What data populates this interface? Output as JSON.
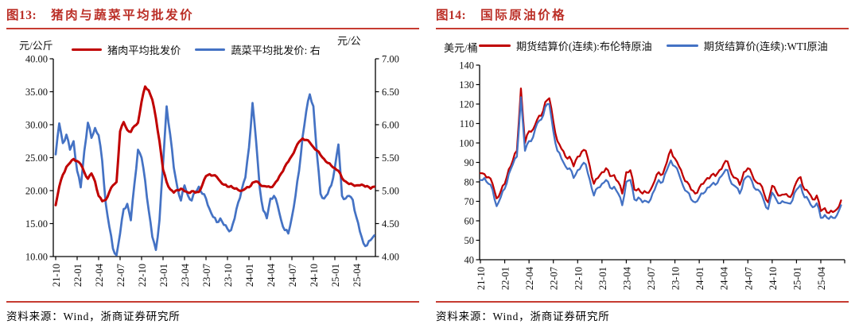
{
  "page": {
    "background": "#ffffff"
  },
  "styles": {
    "title_color": "#bb2f27",
    "rule_color": "#c63b31",
    "axis_color": "#000000",
    "pork_brent_red": "#c00000",
    "veg_wti_blue": "#4472c4"
  },
  "chart_data": [
    {
      "type": "line",
      "figure_label": "图13:",
      "title": "猪肉与蔬菜平均批发价",
      "source": "资料来源：Wind，浙商证券研究所",
      "x_axis": {
        "tick_labels": [
          "21-10",
          "22-01",
          "22-04",
          "22-07",
          "22-10",
          "23-01",
          "23-04",
          "23-07",
          "23-10",
          "24-01",
          "24-04",
          "24-07",
          "24-10",
          "25-01",
          "25-04"
        ],
        "months_per_tick": 3,
        "points_per_month": 2,
        "x_start": "2021-10",
        "x_interval": "semi-monthly"
      },
      "left_axis": {
        "unit": "元/公斤",
        "min": 10,
        "max": 40,
        "ticks": [
          {
            "v": 40,
            "label": "40.00"
          },
          {
            "v": 35,
            "label": "35.00"
          },
          {
            "v": 30,
            "label": "30.00"
          },
          {
            "v": 25,
            "label": "25.00"
          },
          {
            "v": 20,
            "label": "20.00"
          },
          {
            "v": 15,
            "label": "15.00"
          },
          {
            "v": 10,
            "label": "10.00"
          }
        ]
      },
      "right_axis": {
        "unit": "元/公",
        "min": 4,
        "max": 7,
        "ticks": [
          {
            "v": 7,
            "label": "7.00"
          },
          {
            "v": 6.5,
            "label": "6.50"
          },
          {
            "v": 6,
            "label": "6.00"
          },
          {
            "v": 5.5,
            "label": "5.50"
          },
          {
            "v": 5,
            "label": "5.00"
          },
          {
            "v": 4.5,
            "label": "4.50"
          },
          {
            "v": 4,
            "label": "4.00"
          }
        ]
      },
      "series": [
        {
          "name": "猪肉平均批发价",
          "axis": "left",
          "color": "#c00000",
          "values": [
            17.8,
            20.6,
            22.4,
            23.6,
            24.2,
            24.8,
            24.5,
            24.0,
            22.8,
            21.8,
            22.6,
            21.4,
            19.2,
            18.4,
            18.6,
            19.8,
            20.8,
            21.3,
            29.0,
            30.4,
            29.2,
            28.9,
            29.8,
            30.3,
            33.5,
            35.8,
            35.2,
            33.8,
            31.0,
            27.5,
            23.2,
            21.3,
            20.2,
            19.7,
            20.1,
            20.3,
            19.9,
            19.7,
            19.9,
            19.7,
            19.8,
            20.9,
            22.2,
            22.5,
            22.3,
            22.1,
            21.4,
            20.9,
            20.6,
            20.7,
            20.3,
            20.1,
            20.0,
            20.3,
            20.5,
            21.2,
            21.4,
            21.0,
            20.7,
            20.6,
            20.5,
            20.9,
            21.6,
            22.6,
            23.6,
            24.4,
            25.3,
            26.4,
            27.4,
            27.9,
            27.7,
            27.3,
            26.6,
            26.1,
            25.4,
            24.8,
            24.2,
            23.8,
            23.4,
            23.0,
            21.9,
            21.4,
            21.0,
            20.9,
            20.8,
            20.8,
            20.8,
            20.7,
            20.3,
            20.6
          ]
        },
        {
          "name": "蔬菜平均批发价: 右",
          "axis": "right",
          "color": "#4472c4",
          "values": [
            5.55,
            6.02,
            5.72,
            5.85,
            5.62,
            5.75,
            5.3,
            5.05,
            5.6,
            6.03,
            5.8,
            5.95,
            5.84,
            5.45,
            4.8,
            4.45,
            4.12,
            4.02,
            4.35,
            4.72,
            4.8,
            4.55,
            5.1,
            5.62,
            5.5,
            5.15,
            4.7,
            4.3,
            4.1,
            4.55,
            5.4,
            6.28,
            5.85,
            5.35,
            5.05,
            4.85,
            5.08,
            4.92,
            4.85,
            4.98,
            5.06,
            4.95,
            4.88,
            4.72,
            4.6,
            4.52,
            4.58,
            4.48,
            4.42,
            4.4,
            4.58,
            4.82,
            5.02,
            5.2,
            5.65,
            6.33,
            5.75,
            5.05,
            4.7,
            4.58,
            4.88,
            4.92,
            4.78,
            4.55,
            4.4,
            4.35,
            4.6,
            4.92,
            5.3,
            5.82,
            6.2,
            6.46,
            6.28,
            5.55,
            4.95,
            4.88,
            4.95,
            5.08,
            5.35,
            5.7,
            4.92,
            4.88,
            4.92,
            4.86,
            4.6,
            4.38,
            4.2,
            4.17,
            4.25,
            4.32
          ]
        }
      ]
    },
    {
      "type": "line",
      "figure_label": "图14:",
      "title": "国际原油价格",
      "source": "资料来源：Wind，浙商证券研究所",
      "x_axis": {
        "tick_labels": [
          "21-10",
          "22-01",
          "22-04",
          "22-07",
          "22-10",
          "23-01",
          "23-04",
          "23-07",
          "23-10",
          "24-01",
          "24-04",
          "24-07",
          "24-10",
          "25-01",
          "25-04"
        ],
        "months_per_tick": 3,
        "points_per_month": 2,
        "x_start": "2021-10",
        "x_interval": "semi-monthly"
      },
      "left_axis": {
        "unit": "美元/桶",
        "min": 40,
        "max": 140,
        "ticks": [
          {
            "v": 140,
            "label": "140"
          },
          {
            "v": 130,
            "label": "130"
          },
          {
            "v": 120,
            "label": "120"
          },
          {
            "v": 110,
            "label": "110"
          },
          {
            "v": 100,
            "label": "100"
          },
          {
            "v": 90,
            "label": "90"
          },
          {
            "v": 80,
            "label": "80"
          },
          {
            "v": 70,
            "label": "70"
          },
          {
            "v": 60,
            "label": "60"
          },
          {
            "v": 50,
            "label": "50"
          },
          {
            "v": 40,
            "label": "40"
          }
        ]
      },
      "right_axis": null,
      "series": [
        {
          "name": "期货结算价(连续):布伦特原油",
          "axis": "left",
          "color": "#c00000",
          "values": [
            84.5,
            84.0,
            82.5,
            79.0,
            71.5,
            75.0,
            79.0,
            86.5,
            91.0,
            96.0,
            128.0,
            100.0,
            106.0,
            107.0,
            112.0,
            114.0,
            121.0,
            123.0,
            111.0,
            101.0,
            97.0,
            93.0,
            93.0,
            88.0,
            93.0,
            95.5,
            96.0,
            88.0,
            79.0,
            82.0,
            85.0,
            87.0,
            83.0,
            83.5,
            80.0,
            74.0,
            85.0,
            86.0,
            76.0,
            76.5,
            74.0,
            74.5,
            76.0,
            80.5,
            85.0,
            84.0,
            90.0,
            96.5,
            92.0,
            88.0,
            83.0,
            80.0,
            76.0,
            74.0,
            77.0,
            79.0,
            82.0,
            83.5,
            83.0,
            86.0,
            89.0,
            90.5,
            84.0,
            82.0,
            78.5,
            85.0,
            87.0,
            84.0,
            80.0,
            79.0,
            74.0,
            69.5,
            78.0,
            75.0,
            73.0,
            73.5,
            72.5,
            74.0,
            80.0,
            82.5,
            76.0,
            74.5,
            71.0,
            73.0,
            65.0,
            66.5,
            64.0,
            64.5,
            66.0,
            70.5
          ]
        },
        {
          "name": "期货结算价(连续):WTI原油",
          "axis": "left",
          "color": "#4472c4",
          "values": [
            81.0,
            82.0,
            79.0,
            76.0,
            67.5,
            72.0,
            76.5,
            84.0,
            89.0,
            93.0,
            123.5,
            96.0,
            101.0,
            103.0,
            110.0,
            112.0,
            118.5,
            120.0,
            106.0,
            96.0,
            92.0,
            88.0,
            87.0,
            82.0,
            86.0,
            88.5,
            89.0,
            81.0,
            73.0,
            77.0,
            79.0,
            81.0,
            77.0,
            77.5,
            74.0,
            68.0,
            80.0,
            81.0,
            71.0,
            72.0,
            69.5,
            70.0,
            71.0,
            76.0,
            81.0,
            80.0,
            86.0,
            91.0,
            88.0,
            84.0,
            78.0,
            75.0,
            71.0,
            69.5,
            72.0,
            74.0,
            77.0,
            78.5,
            78.5,
            82.0,
            84.5,
            86.0,
            79.0,
            77.5,
            74.0,
            81.0,
            83.0,
            80.5,
            76.0,
            75.0,
            70.0,
            66.0,
            74.5,
            71.0,
            69.0,
            69.5,
            69.0,
            70.5,
            76.0,
            78.5,
            72.0,
            70.5,
            67.0,
            69.0,
            61.5,
            63.0,
            61.0,
            61.5,
            63.0,
            68.0
          ]
        }
      ]
    }
  ]
}
